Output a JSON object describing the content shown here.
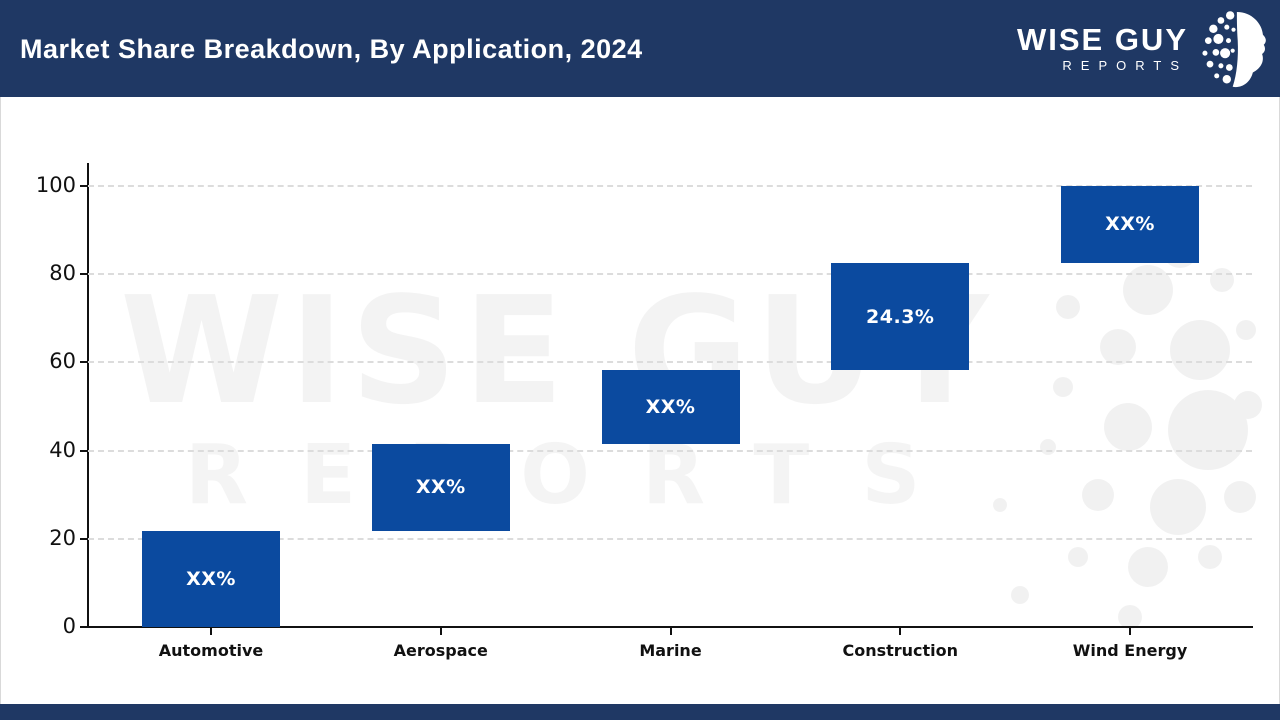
{
  "header": {
    "title": "Market Share Breakdown, By Application, 2024",
    "logo": {
      "name": "WISE GUY",
      "sub": "REPORTS"
    }
  },
  "watermark": {
    "line1": "WISE GUY",
    "line2": "REPORTS"
  },
  "colors": {
    "header_bg": "#1F3864",
    "footer_bg": "#1F3864",
    "bar": "#0B4A9F",
    "bar_label": "#FFFFFF",
    "grid": "#DCDCDC",
    "axis": "#111111"
  },
  "chart_data": {
    "type": "bar",
    "subtype": "waterfall",
    "title": "Market Share Breakdown, By Application, 2024",
    "categories": [
      "Automotive",
      "Aerospace",
      "Marine",
      "Construction",
      "Wind Energy"
    ],
    "bars": [
      {
        "category": "Automotive",
        "label": "XX%",
        "start": 0,
        "end": 21.8
      },
      {
        "category": "Aerospace",
        "label": "XX%",
        "start": 21.8,
        "end": 41.5
      },
      {
        "category": "Marine",
        "label": "XX%",
        "start": 41.5,
        "end": 58.2
      },
      {
        "category": "Construction",
        "label": "24.3%",
        "start": 58.2,
        "end": 82.5
      },
      {
        "category": "Wind Energy",
        "label": "XX%",
        "start": 82.5,
        "end": 100
      }
    ],
    "yticks": [
      0,
      20,
      40,
      60,
      80,
      100
    ],
    "ylim": [
      0,
      105
    ],
    "xlabel": "",
    "ylabel": "",
    "grid": "horizontal-dashed",
    "legend": "none",
    "bar_color": "#0B4A9F",
    "value_label_color": "#FFFFFF"
  }
}
